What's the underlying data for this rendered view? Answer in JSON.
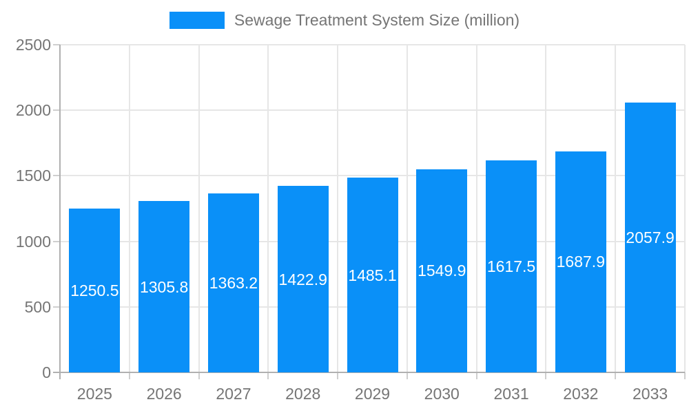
{
  "chart_data": {
    "type": "bar",
    "title": "Sewage Treatment System Size (million)",
    "categories": [
      "2025",
      "2026",
      "2027",
      "2028",
      "2029",
      "2030",
      "2031",
      "2032",
      "2033"
    ],
    "values": [
      1250.5,
      1305.8,
      1363.2,
      1422.9,
      1485.1,
      1549.9,
      1617.5,
      1687.9,
      2057.9
    ],
    "series_name": "Sewage Treatment System Size (million)",
    "xlabel": "",
    "ylabel": "",
    "ylim": [
      0,
      2500
    ],
    "yticks": [
      0,
      500,
      1000,
      1500,
      2000,
      2500
    ],
    "grid": true,
    "legend_position": "top-center",
    "colors": {
      "bar": "#0a90f8",
      "bar_value_label": "#ffffff",
      "axis_text": "#757575",
      "gridline": "#e6e6e6",
      "axis_line": "#b0b0b0",
      "tick": "#cfcfcf",
      "background": "#ffffff"
    }
  }
}
